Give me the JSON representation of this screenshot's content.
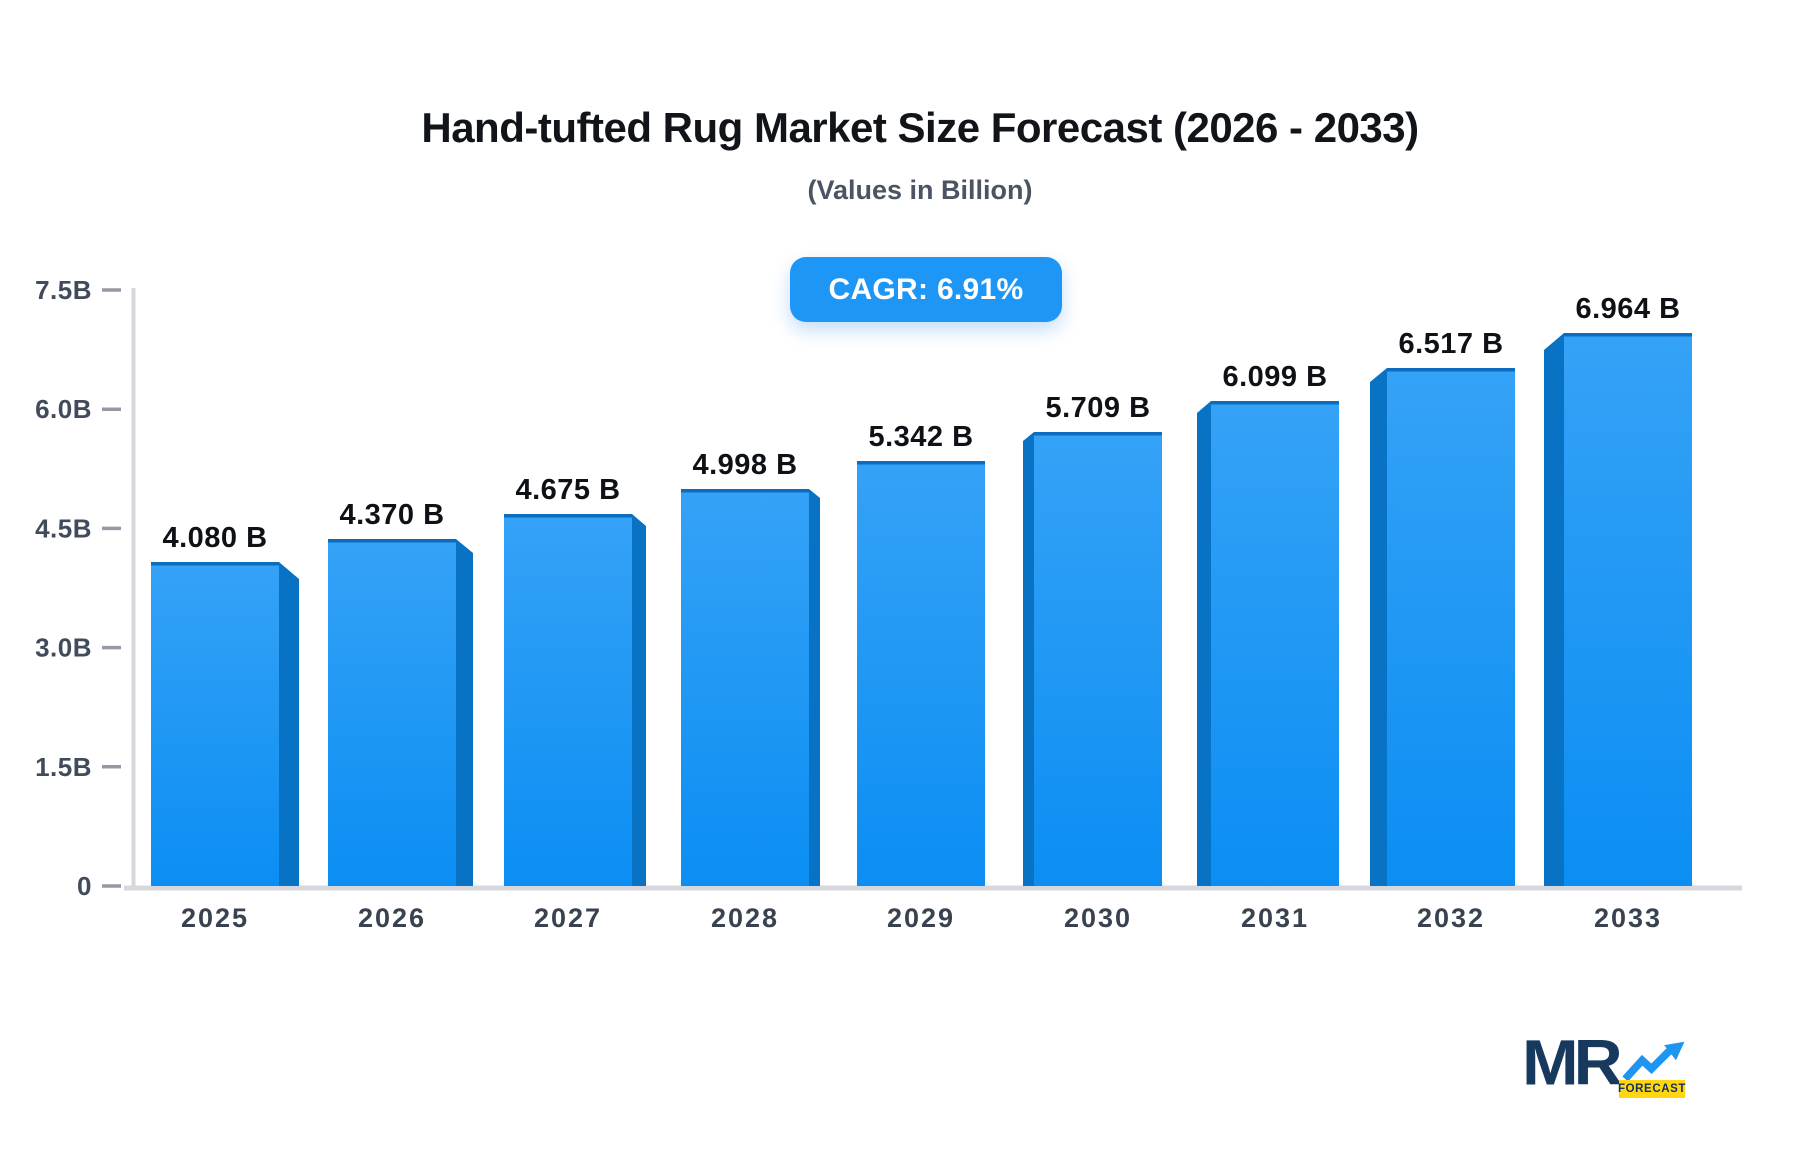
{
  "header": {
    "title": "Hand-tufted Rug Market Size Forecast (2026 - 2033)",
    "subtitle": "(Values in Billion)",
    "cagr_label": "CAGR: 6.91%"
  },
  "chart_data": {
    "type": "bar",
    "title": "Hand-tufted Rug Market Size Forecast (2026 - 2033)",
    "subtitle": "(Values in Billion)",
    "cagr_percent": 6.91,
    "categories": [
      "2025",
      "2026",
      "2027",
      "2028",
      "2029",
      "2030",
      "2031",
      "2032",
      "2033"
    ],
    "values": [
      4.08,
      4.37,
      4.675,
      4.998,
      5.342,
      5.709,
      6.099,
      6.517,
      6.964
    ],
    "value_labels": [
      "4.080 B",
      "4.370 B",
      "4.675 B",
      "4.998 B",
      "5.342 B",
      "5.709 B",
      "6.099 B",
      "6.517 B",
      "6.964 B"
    ],
    "xlabel": "",
    "ylabel": "",
    "ylim": [
      0,
      7.5
    ],
    "ytick_values": [
      0,
      1.5,
      3,
      4.5,
      6,
      7.5
    ],
    "ytick_labels": [
      "0",
      "1.5B",
      "3.0B",
      "4.5B",
      "6.0B",
      "7.5B"
    ],
    "grid": false,
    "legend": "none",
    "bar_style": "3d-perspective",
    "colors": {
      "bar_top": "#35a2f6",
      "bar_bottom": "#0b8ef3",
      "bar_side": "#0872c4",
      "bar_edge": "#0d6cbe",
      "axis_line": "#d6d8dd",
      "tick_mark": "#939aa6",
      "badge_bg": "#1e96f5",
      "logo_navy": "#17395e",
      "logo_yellow": "#ffd60f",
      "logo_arrow": "#1f95f2"
    }
  },
  "logo": {
    "brand": "MR",
    "sub": "FORECAST"
  }
}
